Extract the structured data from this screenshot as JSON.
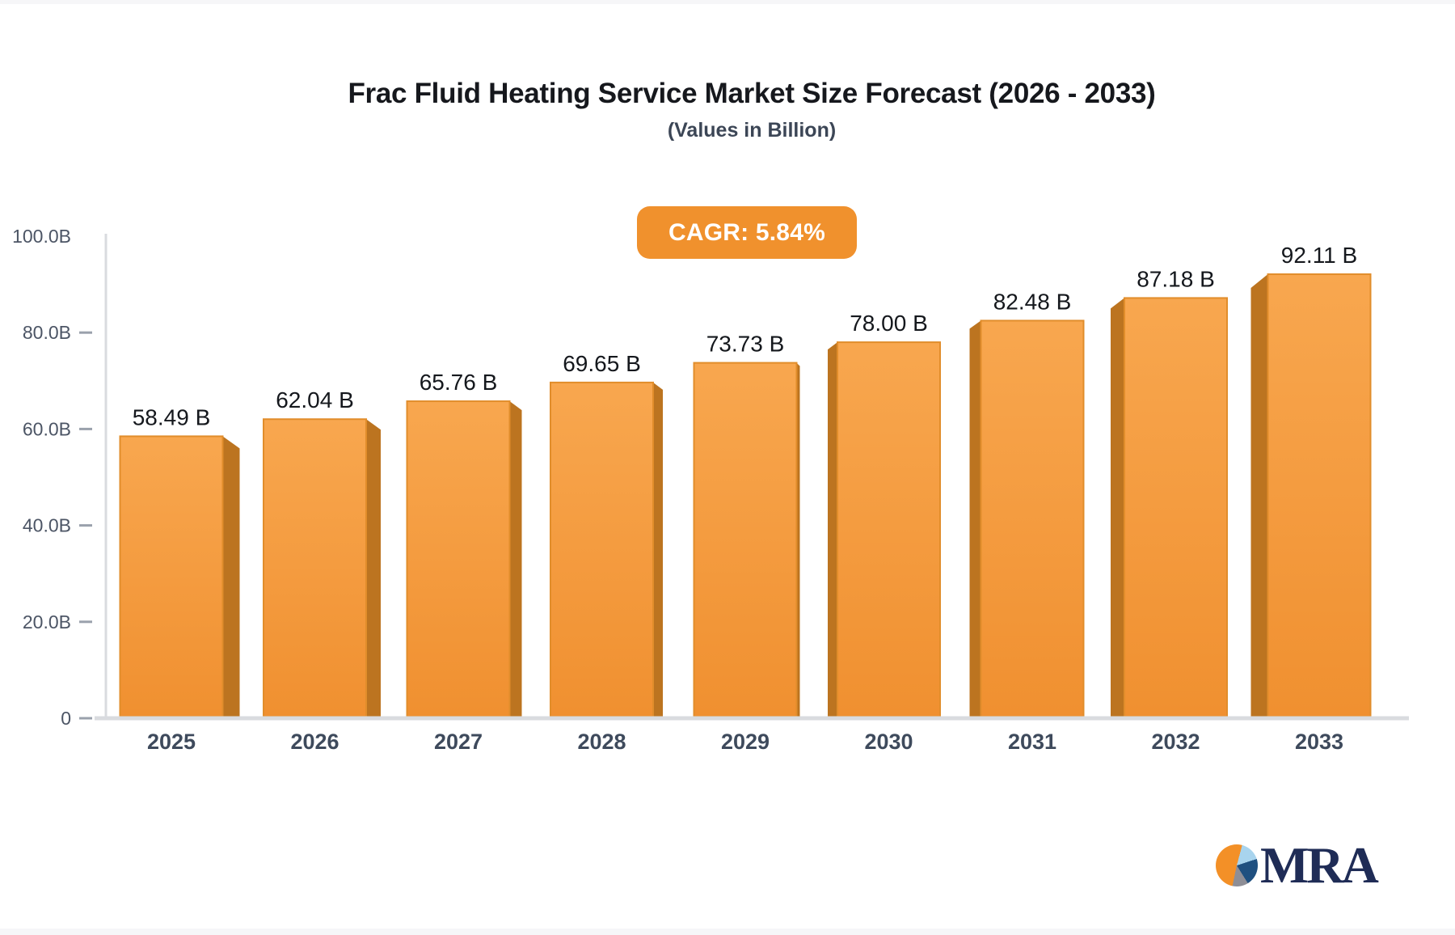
{
  "header": {
    "title": "Frac Fluid Heating Service Market Size Forecast (2026 - 2033)",
    "subtitle": "(Values in Billion)",
    "cagr_badge": "CAGR: 5.84%"
  },
  "chart_data": {
    "type": "bar",
    "title": "Frac Fluid Heating Service Market Size Forecast (2026 - 2033)",
    "subtitle": "(Values in Billion)",
    "annotation": "CAGR: 5.84%",
    "xlabel": "",
    "ylabel": "",
    "categories": [
      "2025",
      "2026",
      "2027",
      "2028",
      "2029",
      "2030",
      "2031",
      "2032",
      "2033"
    ],
    "values": [
      58.49,
      62.04,
      65.76,
      69.65,
      73.73,
      78.0,
      82.48,
      87.18,
      92.11
    ],
    "value_labels": [
      "58.49 B",
      "62.04 B",
      "65.76 B",
      "69.65 B",
      "73.73 B",
      "78.00 B",
      "82.48 B",
      "87.18 B",
      "92.11 B"
    ],
    "ylim": [
      0,
      100
    ],
    "y_ticks": [
      {
        "label": "100.0B",
        "value": 100
      },
      {
        "label": "80.0B",
        "value": 80
      },
      {
        "label": "60.0B",
        "value": 60
      },
      {
        "label": "40.0B",
        "value": 40
      },
      {
        "label": "20.0B",
        "value": 20
      },
      {
        "label": "0",
        "value": 0
      }
    ],
    "grid": false,
    "legend": false,
    "bar_style": "3d-perspective-toward-center",
    "colors": {
      "bar_top": "#F8A74F",
      "bar_bottom": "#F09030",
      "bar_stroke": "#E18D2B",
      "bar_side": "#BC7420",
      "axis": "#D9DBDF",
      "tick": "#9AA1AC",
      "y_label": "#4C5565",
      "x_label": "#3E4A5C",
      "value_label": "#15181D",
      "badge_bg": "#F0912D"
    }
  },
  "logo": {
    "text": "MRA"
  }
}
